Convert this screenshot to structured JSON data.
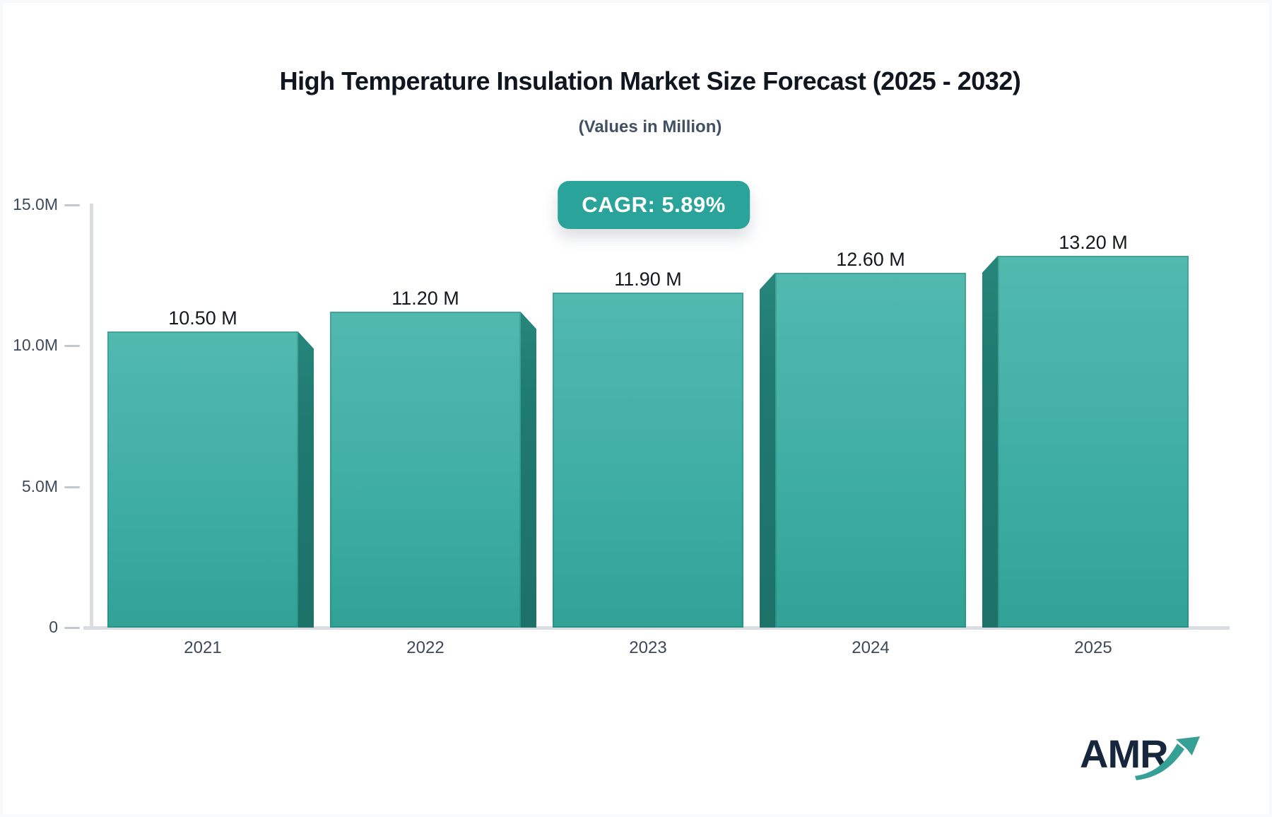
{
  "header": {
    "title": "High Temperature Insulation Market Size Forecast (2025 - 2032)",
    "subtitle": "(Values in Million)"
  },
  "badge": {
    "label": "CAGR: 5.89%",
    "bg_color": "#2aa39a",
    "text_color": "#ffffff"
  },
  "chart_data": {
    "type": "bar",
    "title": "High Temperature Insulation Market Size Forecast (2025 - 2032)",
    "subtitle": "(Values in Million)",
    "annotation": "CAGR: 5.89%",
    "categories": [
      "2021",
      "2022",
      "2023",
      "2024",
      "2025"
    ],
    "values": [
      10.5,
      11.2,
      11.9,
      12.6,
      13.2
    ],
    "value_labels": [
      "10.50 M",
      "11.20 M",
      "11.90 M",
      "12.60 M",
      "13.20 M"
    ],
    "unit": "Million",
    "ylim": [
      0,
      15
    ],
    "yticks": [
      {
        "value": 0,
        "label": "0"
      },
      {
        "value": 5,
        "label": "5.0M"
      },
      {
        "value": 10,
        "label": "10.0M"
      },
      {
        "value": 15,
        "label": "15.0M"
      }
    ],
    "grid": false,
    "legend": false,
    "bar_color": "#45b1a7",
    "bar_side_color": "#1f7a70",
    "axis_color": "#d9dce0",
    "label_color": "#3e4a5b"
  },
  "logo": {
    "text": "AMR",
    "arrow_icon": "growth-arrow-icon",
    "text_color": "#16263c",
    "arrow_color": "#37a094"
  }
}
